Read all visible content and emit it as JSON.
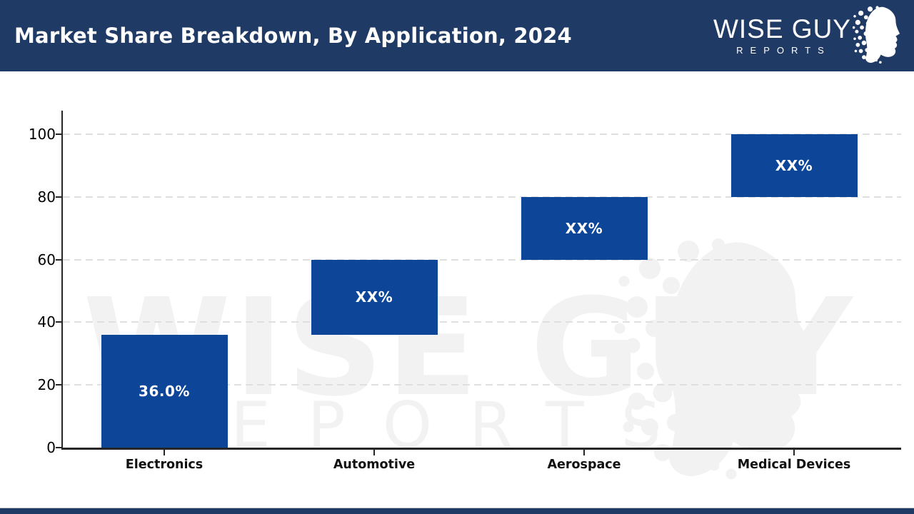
{
  "header": {
    "title": "Market Share Breakdown, By Application, 2024",
    "logo": {
      "wordmark": "WISE GUY",
      "subtitle": "REPORTS"
    }
  },
  "watermark": {
    "wordmark": "WISE GUY",
    "subtitle": "REPORTS"
  },
  "chart_data": {
    "type": "bar",
    "subtype": "waterfall",
    "title": "Market Share Breakdown, By Application, 2024",
    "categories": [
      "Electronics",
      "Automotive",
      "Aerospace",
      "Medical Devices"
    ],
    "segments": [
      {
        "category": "Electronics",
        "start": 0,
        "end": 36,
        "label": "36.0%"
      },
      {
        "category": "Automotive",
        "start": 36,
        "end": 60,
        "label": "XX%"
      },
      {
        "category": "Aerospace",
        "start": 60,
        "end": 80,
        "label": "XX%"
      },
      {
        "category": "Medical Devices",
        "start": 80,
        "end": 100,
        "label": "XX%"
      }
    ],
    "xlabel": "",
    "ylabel": "",
    "ylim": [
      0,
      107
    ],
    "yticks": [
      0,
      20,
      40,
      60,
      80,
      100
    ],
    "grid": "horizontal-dashed",
    "legend": "none",
    "bar_color": "#0d4599",
    "bar_label_color": "#ffffff"
  },
  "colors": {
    "header_bg": "#203a66",
    "footer_bg": "#203a66",
    "chart_bg": "#ffffff",
    "axis": "#262626",
    "gridline": "#e0e0e0",
    "watermark": "#f2f2f2"
  }
}
